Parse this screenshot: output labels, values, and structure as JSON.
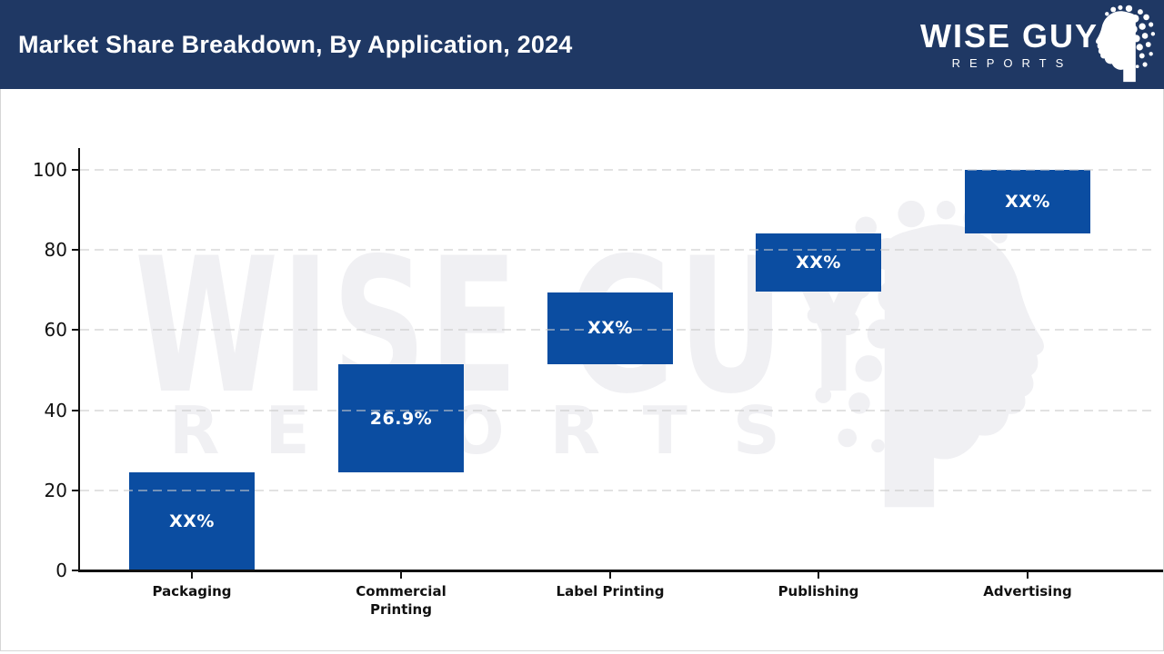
{
  "header": {
    "title": "Market Share Breakdown, By Application, 2024",
    "background_color": "#1f3864",
    "logo": {
      "wordmark": "WISE GUY",
      "subtext": "REPORTS"
    }
  },
  "watermark": {
    "line1": "WISE GUY",
    "line2": "REPORTS"
  },
  "chart_data": {
    "type": "bar",
    "subtype": "waterfall",
    "title": "Market Share Breakdown, By Application, 2024",
    "categories": [
      "Packaging",
      "Commercial Printing",
      "Label Printing",
      "Publishing",
      "Advertising"
    ],
    "bars": [
      {
        "category": "Packaging",
        "base": 0,
        "top": 24.5,
        "label": "XX%"
      },
      {
        "category": "Commercial Printing",
        "base": 24.5,
        "top": 51.4,
        "label": "26.9%"
      },
      {
        "category": "Label Printing",
        "base": 51.4,
        "top": 69.5,
        "label": "XX%"
      },
      {
        "category": "Publishing",
        "base": 69.5,
        "top": 84.1,
        "label": "XX%"
      },
      {
        "category": "Advertising",
        "base": 84.1,
        "top": 100.0,
        "label": "XX%"
      }
    ],
    "ylim": [
      0,
      100
    ],
    "yticks": [
      0,
      20,
      40,
      60,
      80,
      100
    ],
    "xlabel": "",
    "ylabel": "",
    "grid": "horizontal-dashed",
    "legend": "none",
    "bar_color": "#0b4da1",
    "bar_label_color": "#ffffff",
    "axis_color": "#111111"
  }
}
